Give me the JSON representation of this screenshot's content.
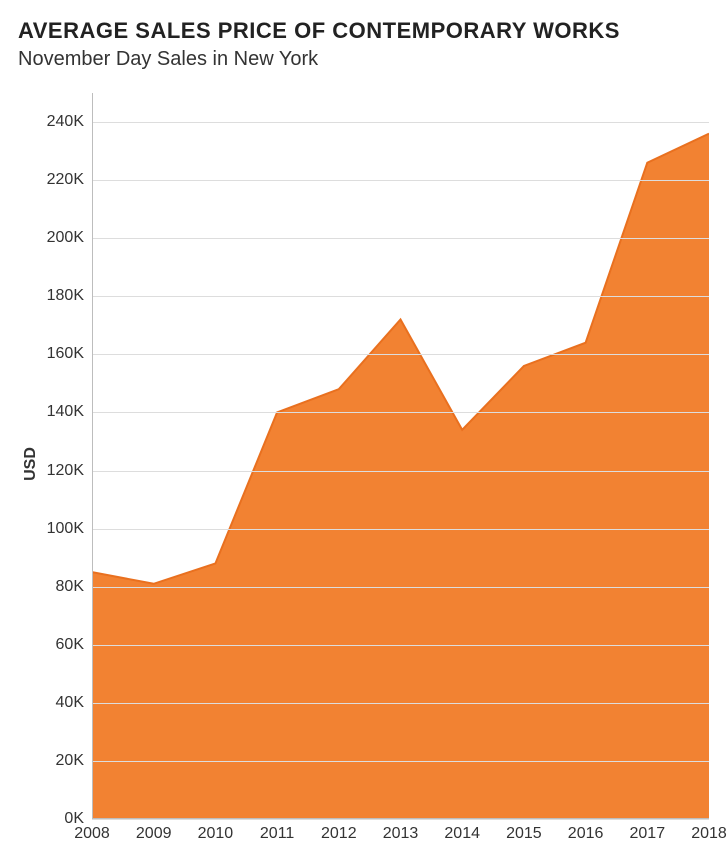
{
  "chart": {
    "type": "area",
    "title": "AVERAGE SALES PRICE OF CONTEMPORARY WORKS",
    "subtitle": "November Day Sales in New York",
    "ylabel": "USD",
    "title_fontsize": 22,
    "subtitle_fontsize": 20,
    "ylabel_fontsize": 16,
    "tick_fontsize": 16,
    "background_color": "#ffffff",
    "grid_color": "#dddddd",
    "axis_color": "#bdbdbd",
    "fill_color": "#f28232",
    "stroke_color": "#e9701f",
    "stroke_width": 2,
    "ylim": [
      0,
      250000
    ],
    "yticks": [
      0,
      20000,
      40000,
      60000,
      80000,
      100000,
      120000,
      140000,
      160000,
      180000,
      200000,
      220000,
      240000
    ],
    "ytick_labels": [
      "0K",
      "20K",
      "40K",
      "60K",
      "80K",
      "100K",
      "120K",
      "140K",
      "160K",
      "180K",
      "200K",
      "220K",
      "240K"
    ],
    "categories": [
      "2008",
      "2009",
      "2010",
      "2011",
      "2012",
      "2013",
      "2014",
      "2015",
      "2016",
      "2017",
      "2018"
    ],
    "values": [
      85000,
      81000,
      88000,
      140000,
      148000,
      172000,
      134000,
      156000,
      164000,
      226000,
      236000
    ]
  }
}
